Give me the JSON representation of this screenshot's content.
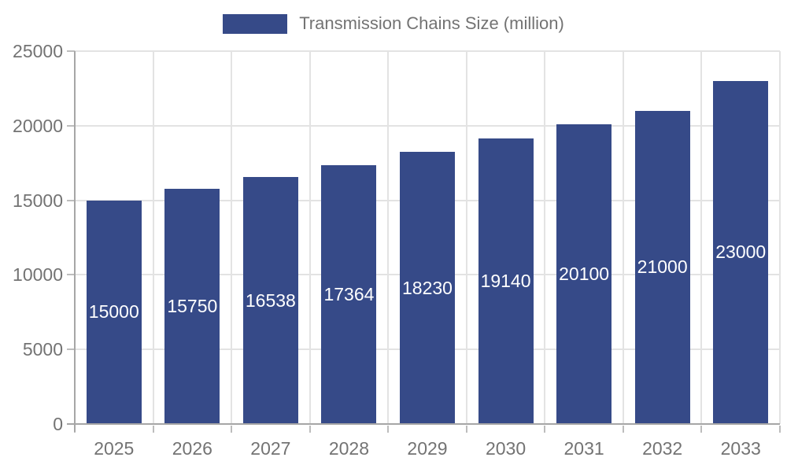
{
  "chart_data": {
    "type": "bar",
    "title": "",
    "series_name": "Transmission Chains Size (million)",
    "categories": [
      "2025",
      "2026",
      "2027",
      "2028",
      "2029",
      "2030",
      "2031",
      "2032",
      "2033"
    ],
    "values": [
      15000,
      15750,
      16538,
      17364,
      18230,
      19140,
      20100,
      21000,
      23000
    ],
    "bar_labels": [
      "15000",
      "15750",
      "16538",
      "17364",
      "18230",
      "19140",
      "20100",
      "21000",
      "23000"
    ],
    "xlabel": "",
    "ylabel": "",
    "ylim": [
      0,
      25000
    ],
    "yticks": [
      0,
      5000,
      10000,
      15000,
      20000,
      25000
    ],
    "ytick_labels": [
      "0",
      "5000",
      "10000",
      "15000",
      "20000",
      "25000"
    ],
    "grid": true,
    "legend_position": "top",
    "bar_labels_inside": true
  },
  "colors": {
    "bar": "#364a88",
    "bar_label": "#ffffff",
    "axis": "#a6a6a6",
    "tick": "#bdbdbd",
    "grid": "#e3e3e3",
    "text": "#737373",
    "background": "#ffffff"
  }
}
